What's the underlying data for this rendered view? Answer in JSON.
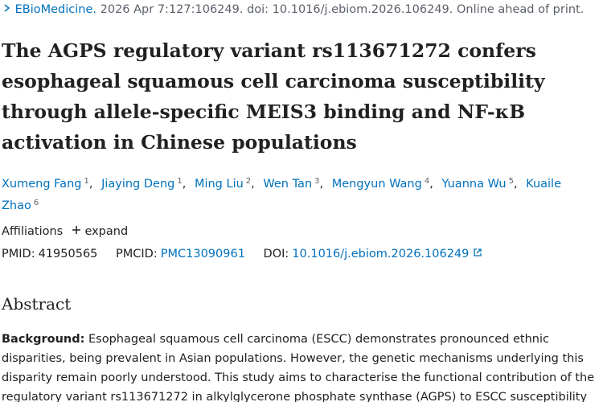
{
  "citation": {
    "journal": "EBioMedicine.",
    "details": "2026 Apr 7:127:106249. doi: 10.1016/j.ebiom.2026.106249. Online ahead of print."
  },
  "title": "The AGPS regulatory variant rs113671272 confers esophageal squamous cell carcinoma susceptibility through allele-specific MEIS3 binding and NF-κB activation in Chinese populations",
  "authors": {
    "separator": ",",
    "list": [
      {
        "name": "Xumeng Fang",
        "affiliation": "1"
      },
      {
        "name": "Jiaying Deng",
        "affiliation": "1"
      },
      {
        "name": "Ming Liu",
        "affiliation": "2"
      },
      {
        "name": "Wen Tan",
        "affiliation": "3"
      },
      {
        "name": "Mengyun Wang",
        "affiliation": "4"
      },
      {
        "name": "Yuanna Wu",
        "affiliation": "5"
      },
      {
        "name": "Kuaile Zhao",
        "affiliation": "6"
      }
    ]
  },
  "affiliations": {
    "label": "Affiliations",
    "toggle": "expand"
  },
  "identifiers": {
    "pmid_label": "PMID:",
    "pmid": "41950565",
    "pmcid_label": "PMCID:",
    "pmcid": "PMC13090961",
    "doi_label": "DOI:",
    "doi": "10.1016/j.ebiom.2026.106249"
  },
  "abstract": {
    "heading": "Abstract",
    "background_label": "Background:",
    "background_text": "Esophageal squamous cell carcinoma (ESCC) demonstrates pronounced ethnic disparities, being prevalent in Asian populations. However, the genetic mechanisms underlying this disparity remain poorly understood. This study aims to characterise the functional contribution of the regulatory variant rs113671272 in alkylglycerone phosphate synthase (AGPS) to ESCC susceptibility"
  }
}
